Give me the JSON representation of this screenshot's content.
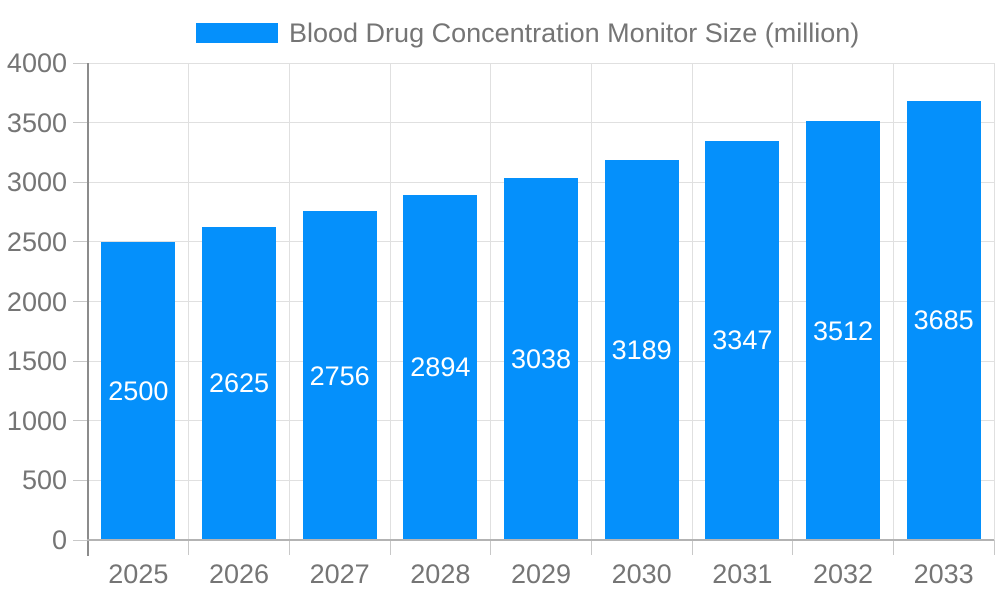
{
  "chart_data": {
    "type": "bar",
    "title": "Blood Drug Concentration Monitor Size (million)",
    "categories": [
      "2025",
      "2026",
      "2027",
      "2028",
      "2029",
      "2030",
      "2031",
      "2032",
      "2033"
    ],
    "values": [
      2500,
      2625,
      2756,
      2894,
      3038,
      3189,
      3347,
      3512,
      3685
    ],
    "bar_value_labels": [
      "2500",
      "2625",
      "2756",
      "2894",
      "3038",
      "3189",
      "3347",
      "3512",
      "3685"
    ],
    "xlabel": "",
    "ylabel": "",
    "ylim": [
      0,
      4000
    ],
    "yticks": [
      0,
      500,
      1000,
      1500,
      2000,
      2500,
      3000,
      3500,
      4000
    ],
    "ytick_labels": [
      "0",
      "500",
      "1000",
      "1500",
      "2000",
      "2500",
      "3000",
      "3500",
      "4000"
    ],
    "grid": true,
    "legend_position": "top",
    "bar_labels_inside": true
  },
  "legend": {
    "label": "Blood Drug Concentration Monitor Size (million)"
  },
  "colors": {
    "bar": "#0590fb",
    "bar_label_text": "#ffffff",
    "axis_text": "#757575",
    "legend_text": "#757575",
    "gridline": "#e0e0e0",
    "y_axis_line": "#8c8c8c",
    "x_axis_line": "#b3b3b3",
    "tick_mark": "#c8c8c8",
    "background": "#ffffff"
  }
}
